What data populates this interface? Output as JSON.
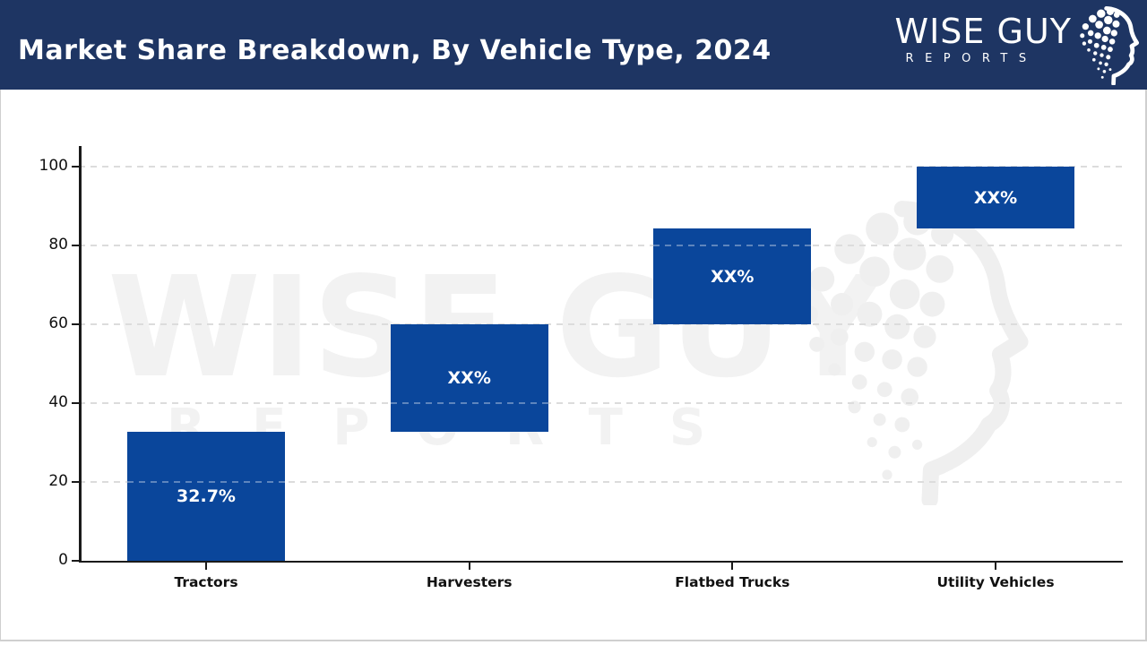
{
  "header": {
    "title": "Market Share Breakdown, By Vehicle Type, 2024",
    "bg_color": "#1e3563",
    "brand": {
      "line1": "WISE GUY",
      "line2": "REPORTS"
    }
  },
  "watermark": {
    "line1": "WISE GUY",
    "line2": "REPORTS"
  },
  "chart_data": {
    "type": "bar",
    "subtype": "waterfall",
    "title": "Market Share Breakdown, By Vehicle Type, 2024",
    "categories": [
      "Tractors",
      "Harvesters",
      "Flatbed Trucks",
      "Utility Vehicles"
    ],
    "segments": [
      {
        "category": "Tractors",
        "start": 0,
        "end": 32.7,
        "label": "32.7%"
      },
      {
        "category": "Harvesters",
        "start": 32.7,
        "end": 60.0,
        "label": "XX%"
      },
      {
        "category": "Flatbed Trucks",
        "start": 60.0,
        "end": 84.3,
        "label": "XX%"
      },
      {
        "category": "Utility Vehicles",
        "start": 84.3,
        "end": 100.0,
        "label": "XX%"
      }
    ],
    "y_ticks": [
      0,
      20,
      40,
      60,
      80,
      100
    ],
    "ylim": [
      0,
      105
    ],
    "xlabel": "",
    "ylabel": "",
    "grid": "horizontal-dashed",
    "legend": "none",
    "bar_color": "#0a469b",
    "value_label_color": "#ffffff",
    "grid_color": "#dcdcdc",
    "axis_color": "#1a1a1a"
  }
}
